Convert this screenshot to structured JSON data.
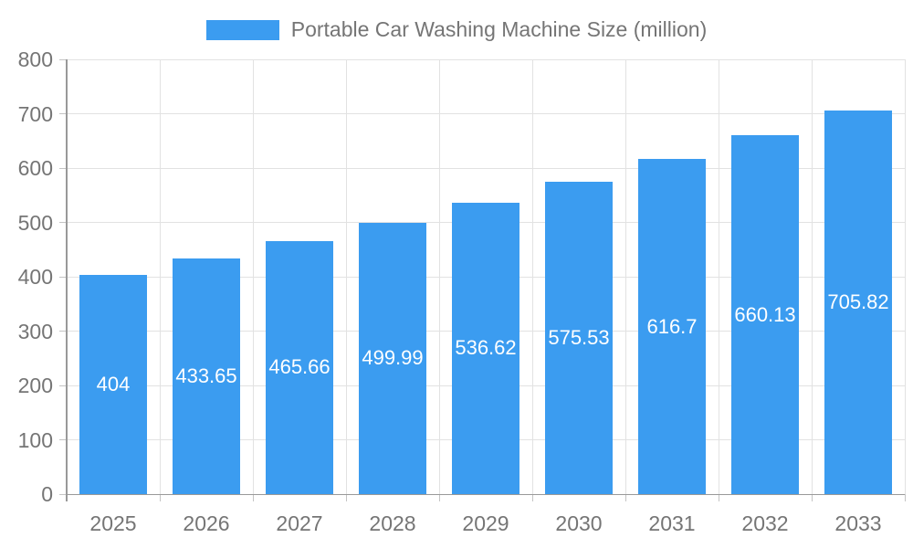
{
  "legend": {
    "label": "Portable Car Washing Machine Size (million)",
    "swatch_color": "#3b9cf0"
  },
  "colors": {
    "bar": "#3b9cf0",
    "axis_line": "#999999",
    "grid_line": "#e2e2e2",
    "tick_mark": "#c4c4c4",
    "axis_label_text": "#757575",
    "value_label_text": "#ffffff",
    "background": "#ffffff"
  },
  "chart_data": {
    "type": "bar",
    "title": "Portable Car Washing Machine Size (million)",
    "categories": [
      "2025",
      "2026",
      "2027",
      "2028",
      "2029",
      "2030",
      "2031",
      "2032",
      "2033"
    ],
    "values": [
      404,
      433.65,
      465.66,
      499.99,
      536.62,
      575.53,
      616.7,
      660.13,
      705.82
    ],
    "value_labels": [
      "404",
      "433.65",
      "465.66",
      "499.99",
      "536.62",
      "575.53",
      "616.7",
      "660.13",
      "705.82"
    ],
    "series_name": "Portable Car Washing Machine Size (million)",
    "xlabel": "",
    "ylabel": "",
    "ylim": [
      0,
      800
    ],
    "yticks": [
      0,
      100,
      200,
      300,
      400,
      500,
      600,
      700,
      800
    ],
    "grid": "on",
    "legend_position": "top-center",
    "value_label_position": "inside-center"
  }
}
